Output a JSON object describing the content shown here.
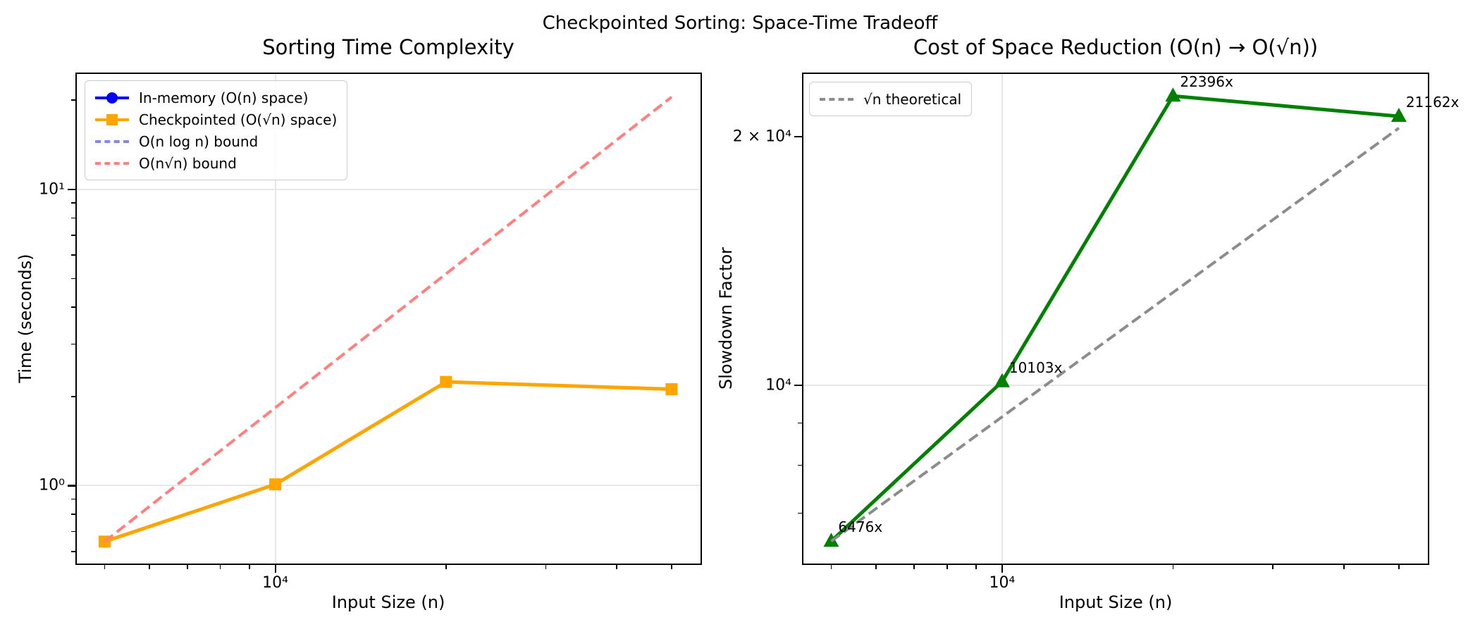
{
  "suptitle": "Checkpointed Sorting: Space-Time Tradeoff",
  "chart_data": [
    {
      "type": "line",
      "title": "Sorting Time Complexity",
      "xlabel": "Input Size (n)",
      "ylabel": "Time (seconds)",
      "x_scale": "log",
      "y_scale": "log",
      "xlim": [
        4467,
        56234
      ],
      "ylim": [
        0.546,
        24.5
      ],
      "grid": "major, light gray",
      "legend_position": "upper left",
      "legend": [
        {
          "label": "In-memory (O(n) space)",
          "color": "#0000ff",
          "line": "solid",
          "marker": "circle"
        },
        {
          "label": "Checkpointed (O(√n) space)",
          "color": "#ffa500",
          "line": "solid",
          "marker": "square"
        },
        {
          "label": "O(n log n) bound",
          "color": "#8585f0",
          "line": "dashed",
          "marker": "none"
        },
        {
          "label": "O(n√n) bound",
          "color": "#ff8080",
          "line": "dashed",
          "marker": "none"
        }
      ],
      "note": "In-memory series and O(n log n) bound appear in legend only; no visible curve inside the axes",
      "x_ticks": [
        {
          "value": 10000,
          "label": "10⁴",
          "grid": true
        }
      ],
      "x_minor_ticks": [
        5000,
        6000,
        7000,
        8000,
        9000,
        20000,
        30000,
        40000,
        50000
      ],
      "y_ticks": [
        {
          "value": 1,
          "label": "10⁰",
          "grid": true
        },
        {
          "value": 10,
          "label": "10¹",
          "grid": true
        }
      ],
      "y_minor_ticks": [
        0.6,
        0.7,
        0.8,
        0.9,
        2,
        3,
        4,
        5,
        6,
        7,
        8,
        9,
        20
      ],
      "series": [
        {
          "name": "checkpointed",
          "legend_label": "Checkpointed (O(√n) space)",
          "color": "#ffa500",
          "line": "solid",
          "line_width": 5,
          "marker": "square",
          "x": [
            5000,
            10000,
            20000,
            50000
          ],
          "y": [
            0.6476,
            1.0103,
            2.2396,
            2.1162
          ]
        },
        {
          "name": "o-n-sqrt-n-bound",
          "legend_label": "O(n√n) bound",
          "color": "#ff8080",
          "line": "dashed",
          "line_width": 4,
          "marker": "none",
          "x": [
            5000,
            50000
          ],
          "y": [
            0.6476,
            20.48
          ]
        }
      ],
      "annotations": []
    },
    {
      "type": "line",
      "title": "Cost of Space Reduction (O(n) → O(√n))",
      "xlabel": "Input Size (n)",
      "ylabel": "Slowdown Factor",
      "x_scale": "log",
      "y_scale": "log",
      "xlim": [
        4467,
        56234
      ],
      "ylim": [
        6085,
        23810
      ],
      "grid": "major, light gray",
      "legend_position": "upper left",
      "legend": [
        {
          "label": "√n theoretical",
          "color": "#8c8c8c",
          "line": "dashed",
          "marker": "none"
        }
      ],
      "note": "",
      "x_ticks": [
        {
          "value": 10000,
          "label": "10⁴",
          "grid": true
        }
      ],
      "x_minor_ticks": [
        5000,
        6000,
        7000,
        8000,
        9000,
        20000,
        30000,
        40000,
        50000
      ],
      "y_ticks": [
        {
          "value": 10000,
          "label": "10⁴",
          "grid": true
        },
        {
          "value": 20000,
          "label": "2 × 10⁴",
          "grid": false
        }
      ],
      "y_minor_ticks": [
        7000,
        8000,
        9000
      ],
      "series": [
        {
          "name": "slowdown-factor",
          "legend_label": "",
          "color": "#008000",
          "line": "solid",
          "line_width": 5,
          "marker": "triangle",
          "x": [
            5000,
            10000,
            20000,
            50000
          ],
          "y": [
            6476,
            10103,
            22396,
            21162
          ]
        },
        {
          "name": "sqrt-n-theoretical",
          "legend_label": "√n theoretical",
          "color": "#8c8c8c",
          "line": "dashed",
          "line_width": 4,
          "marker": "none",
          "x": [
            5000,
            50000
          ],
          "y": [
            6476,
            20478
          ]
        }
      ],
      "annotations": [
        {
          "text": "6476x",
          "x": 5000,
          "y": 6476
        },
        {
          "text": "10103x",
          "x": 10000,
          "y": 10103
        },
        {
          "text": "22396x",
          "x": 20000,
          "y": 22396
        },
        {
          "text": "21162x",
          "x": 50000,
          "y": 21162
        }
      ]
    }
  ]
}
